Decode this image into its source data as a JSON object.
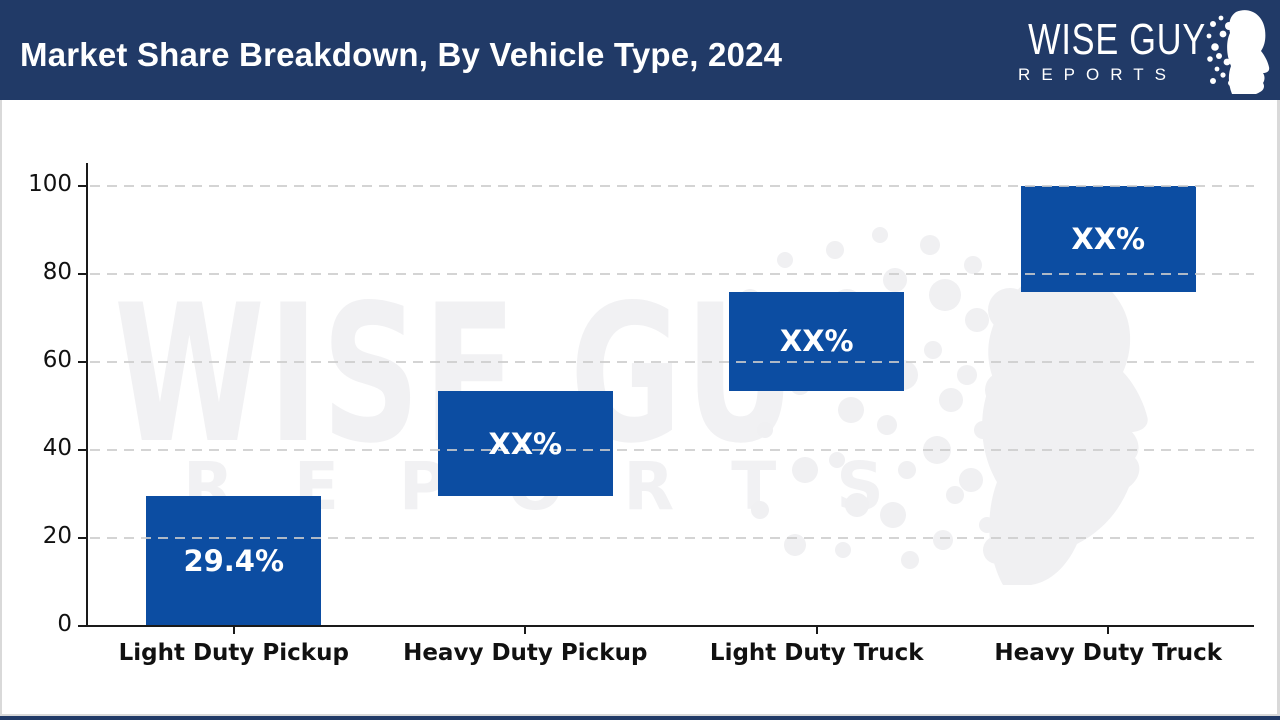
{
  "header": {
    "title": "Market Share Breakdown, By Vehicle Type, 2024",
    "logo": {
      "line1": "WISE GUY",
      "line2": "REPORTS",
      "icon": "dotted-head-profile-icon"
    }
  },
  "watermark": {
    "line1": "WISE GU",
    "line2": "REPORTS",
    "icon": "dotted-head-profile-watermark"
  },
  "chart_data": {
    "type": "bar",
    "subtype": "waterfall",
    "title": "Market Share Breakdown, By Vehicle Type, 2024",
    "categories": [
      "Light Duty Pickup",
      "Heavy Duty Pickup",
      "Light Duty Truck",
      "Heavy Duty Truck"
    ],
    "segments": [
      {
        "category": "Light Duty Pickup",
        "start": 0,
        "end": 29.4,
        "label": "29.4%"
      },
      {
        "category": "Heavy Duty Pickup",
        "start": 29.4,
        "end": 53.3,
        "label": "XX%"
      },
      {
        "category": "Light Duty Truck",
        "start": 53.3,
        "end": 75.9,
        "label": "XX%"
      },
      {
        "category": "Heavy Duty Truck",
        "start": 75.9,
        "end": 100,
        "label": "XX%"
      }
    ],
    "xlabel": "",
    "ylabel": "",
    "ylim": [
      0,
      100
    ],
    "yticks": [
      0,
      20,
      40,
      60,
      80,
      100
    ],
    "grid": "horizontal-dashed",
    "legend": "none",
    "bar_color": "#0c4da2",
    "bar_label_color": "#ffffff"
  },
  "colors": {
    "header_navy": "#213A67",
    "bar_blue": "#0c4da2",
    "grid_gray": "#cccccc",
    "axis_black": "#1a1a1a",
    "watermark_gray": "#f1f1f3",
    "frame_gray": "#d9d9d9"
  }
}
